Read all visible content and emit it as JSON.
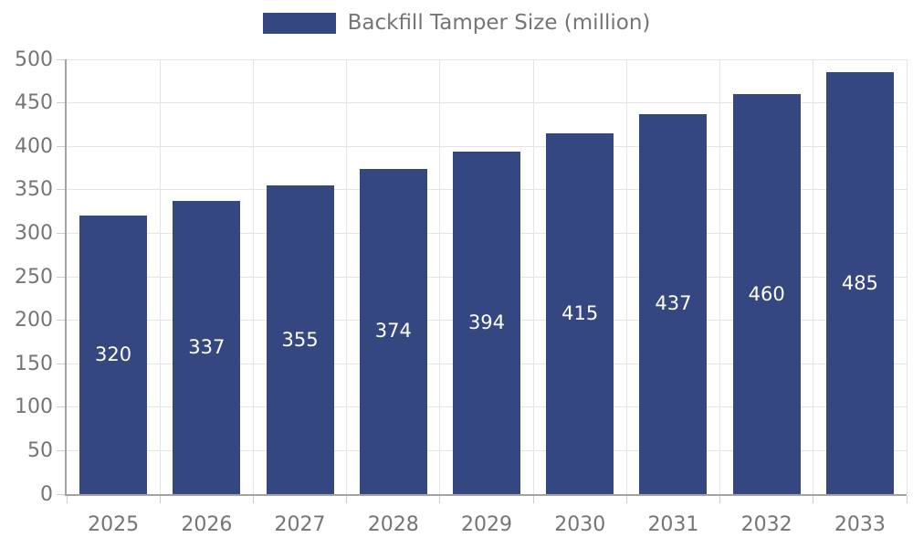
{
  "chart_data": {
    "type": "bar",
    "title": "Backfill Tamper Size (million)",
    "legend": {
      "label": "Backfill Tamper Size (million)",
      "position": "top-center"
    },
    "categories": [
      "2025",
      "2026",
      "2027",
      "2028",
      "2029",
      "2030",
      "2031",
      "2032",
      "2033"
    ],
    "series": [
      {
        "name": "Backfill Tamper Size (million)",
        "values": [
          320,
          337,
          355,
          374,
          394,
          415,
          437,
          460,
          485
        ]
      }
    ],
    "value_labels_shown": true,
    "xlabel": "",
    "ylabel": "",
    "ylim": [
      0,
      500
    ],
    "ytick_step": 50,
    "yticks": [
      0,
      50,
      100,
      150,
      200,
      250,
      300,
      350,
      400,
      450,
      500
    ],
    "grid": "both",
    "colors": {
      "bar": "#354780",
      "bar_label": "#ffffff",
      "axis_text": "#757575",
      "legend_text": "#757575",
      "gridline": "#e4e4e4",
      "spine": "#a3a3a3",
      "tick": "#cccccc",
      "background": "#ffffff"
    }
  }
}
